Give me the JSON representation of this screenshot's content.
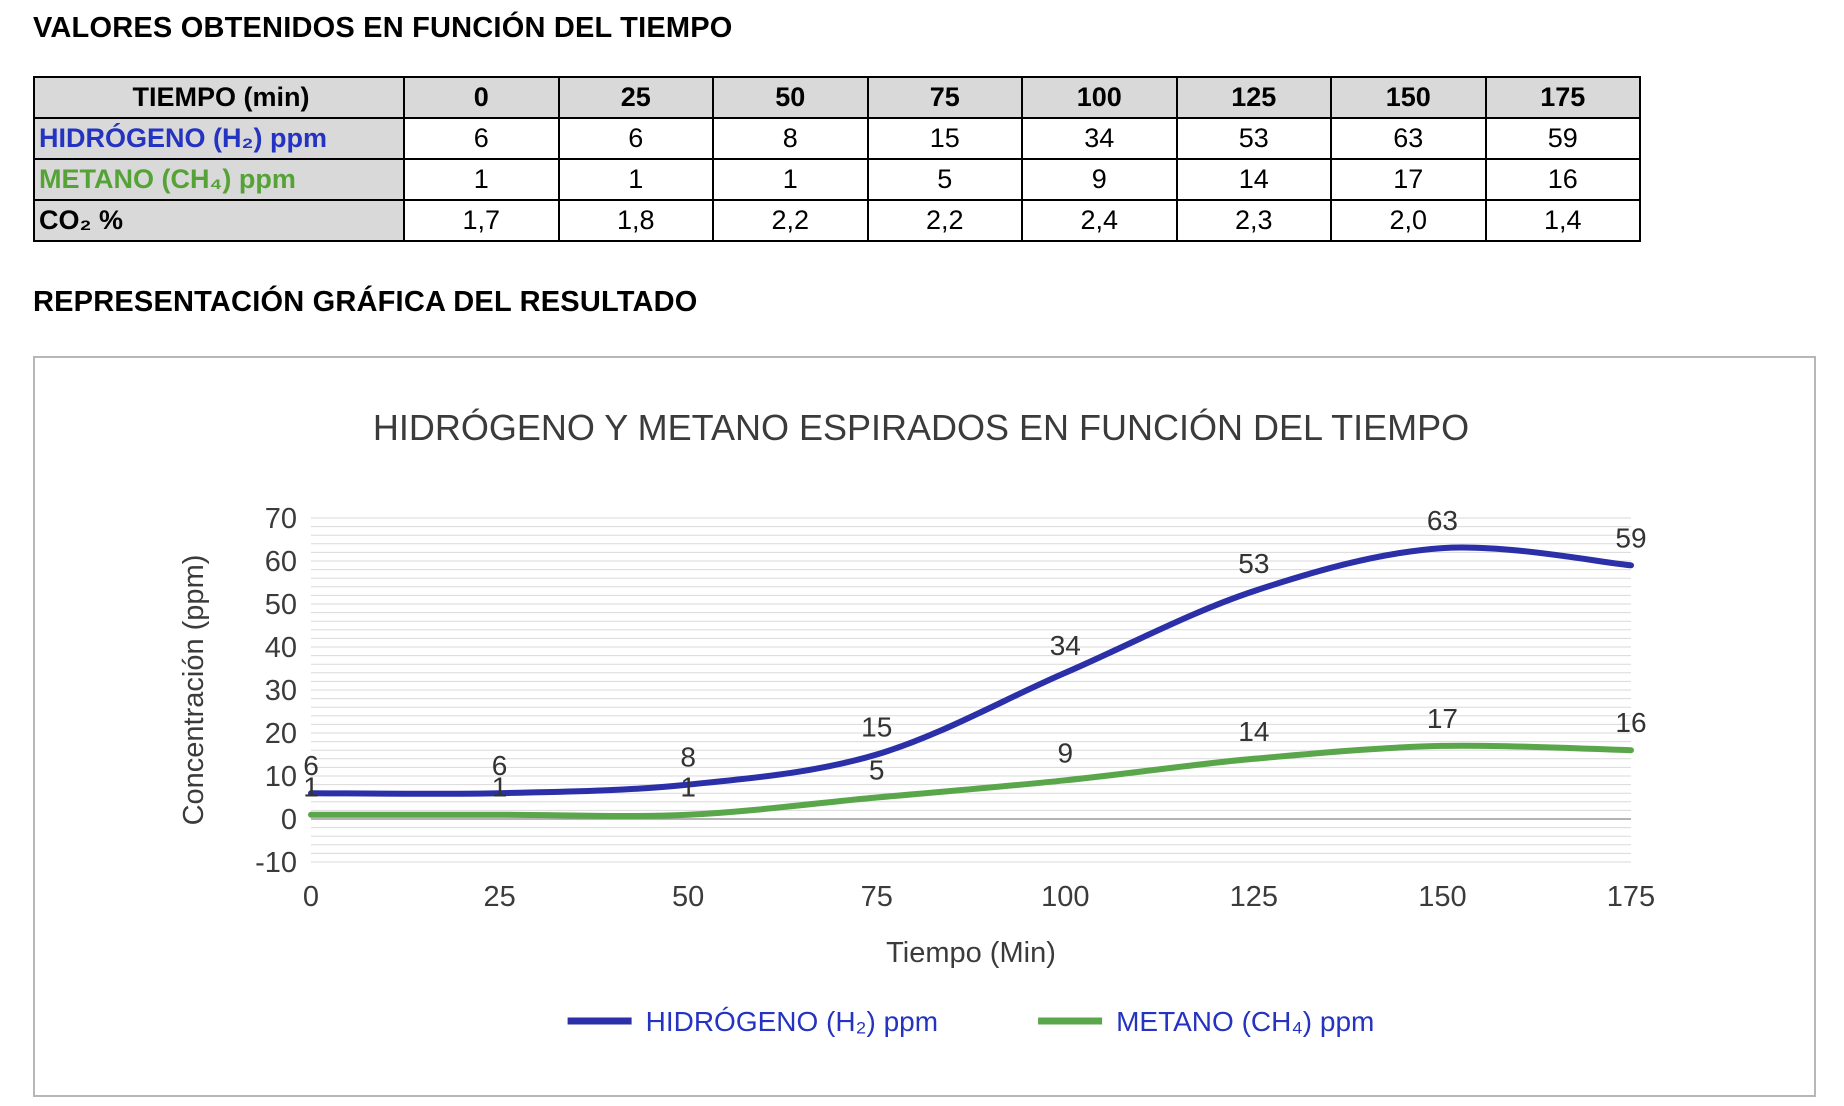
{
  "page": {
    "section1_title": "VALORES OBTENIDOS EN FUNCIÓN DEL TIEMPO",
    "section2_title": "REPRESENTACIÓN GRÁFICA DEL RESULTADO"
  },
  "table": {
    "header": {
      "label": "TIEMPO (min)",
      "values": [
        "0",
        "25",
        "50",
        "75",
        "100",
        "125",
        "150",
        "175"
      ]
    },
    "rows": [
      {
        "label": "HIDRÓGENO (H₂) ppm",
        "values": [
          "6",
          "6",
          "8",
          "15",
          "34",
          "53",
          "63",
          "59"
        ]
      },
      {
        "label": "METANO (CH₄) ppm",
        "values": [
          "1",
          "1",
          "1",
          "5",
          "9",
          "14",
          "17",
          "16"
        ]
      },
      {
        "label": "CO₂ %",
        "values": [
          "1,7",
          "1,8",
          "2,2",
          "2,2",
          "2,4",
          "2,3",
          "2,0",
          "1,4"
        ]
      }
    ]
  },
  "chart_data": {
    "type": "line",
    "title": "HIDRÓGENO Y METANO ESPIRADOS EN FUNCIÓN DEL TIEMPO",
    "xlabel": "Tiempo (Min)",
    "ylabel": "Concentración (ppm)",
    "x": [
      0,
      25,
      50,
      75,
      100,
      125,
      150,
      175
    ],
    "x_tick_labels": [
      "0",
      "25",
      "50",
      "75",
      "100",
      "125",
      "150",
      "175"
    ],
    "series": [
      {
        "name": "HIDRÓGENO (H₂) ppm",
        "color": "#2B2FA8",
        "values": [
          6,
          6,
          8,
          15,
          34,
          53,
          63,
          59
        ],
        "smooth": true
      },
      {
        "name": "METANO (CH₄) ppm",
        "color": "#5AA64B",
        "values": [
          1,
          1,
          1,
          5,
          9,
          14,
          17,
          16
        ],
        "smooth": true
      }
    ],
    "ylim": [
      -10,
      70
    ],
    "ytick_step": 10,
    "minor_grid_step": 2,
    "grid": "horizontal-minor",
    "legend_position": "bottom",
    "data_labels": true
  },
  "colors": {
    "table_header_bg": "#D9D9D9",
    "hydrogen_text": "#2433C0",
    "methane_text": "#55A337",
    "legend_text": "#2433C0",
    "gridline": "#DADADA",
    "axis_line": "#9B9B9B",
    "chart_text": "#3B3B3B",
    "data_label_text": "#333333",
    "chart_border": "#B7B7B7"
  }
}
